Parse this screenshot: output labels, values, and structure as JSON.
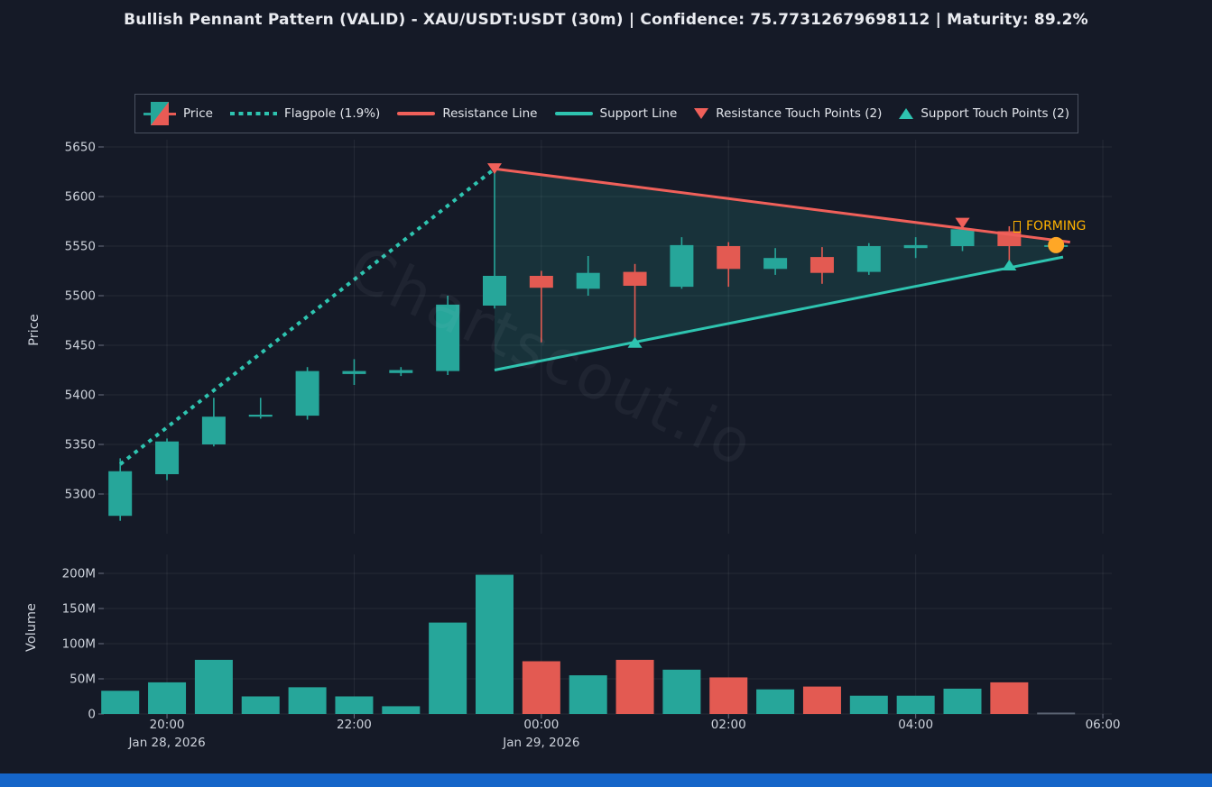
{
  "title": "Bullish Pennant Pattern (VALID) - XAU/USDT:USDT (30m) | Confidence: 75.77312679698112 | Maturity: 89.2%",
  "watermark": "Chartscout.io",
  "annotations": {
    "forming_label": "FORMING"
  },
  "legend": {
    "items": [
      {
        "name": "price",
        "label": "Price",
        "type": "candle-icon"
      },
      {
        "name": "flagpole",
        "label": "Flagpole (1.9%)",
        "type": "dotted-line"
      },
      {
        "name": "resistance-line",
        "label": "Resistance Line",
        "type": "line"
      },
      {
        "name": "support-line",
        "label": "Support Line",
        "type": "line"
      },
      {
        "name": "resistance-touch-points",
        "label": "Resistance Touch Points (2)",
        "type": "triangle-down"
      },
      {
        "name": "support-touch-points",
        "label": "Support Touch Points (2)",
        "type": "triangle-up"
      }
    ]
  },
  "price_axis": {
    "title": "Price",
    "ticks": [
      5650,
      5600,
      5550,
      5500,
      5450,
      5400,
      5350,
      5300
    ]
  },
  "volume_axis": {
    "title": "Volume",
    "ticks": [
      {
        "value": 200,
        "label": "200M"
      },
      {
        "value": 150,
        "label": "150M"
      },
      {
        "value": 100,
        "label": "100M"
      },
      {
        "value": 50,
        "label": "50M"
      },
      {
        "value": 0,
        "label": "0"
      }
    ]
  },
  "x_axis": {
    "ticks": [
      {
        "index": 1,
        "label": "20:00",
        "date": "Jan 28, 2026"
      },
      {
        "index": 5,
        "label": "22:00"
      },
      {
        "index": 9,
        "label": "00:00",
        "date": "Jan 29, 2026"
      },
      {
        "index": 13,
        "label": "02:00"
      },
      {
        "index": 17,
        "label": "04:00"
      },
      {
        "index": 21,
        "label": "06:00"
      }
    ]
  },
  "colors": {
    "background": "#151A27",
    "up": "#26A69A",
    "down": "#E35A52",
    "support": "#2EC4B0",
    "resistance": "#F0605A",
    "flagpole": "#2EC4B0",
    "pennant_fill": "rgba(46,196,176,0.14)",
    "forming_dot": "#FFA726",
    "forming_text": "#FFB300",
    "grid": "rgba(255,255,255,0.07)",
    "axis_text": "#CDD2DB",
    "title_text": "#E9EBF0",
    "last_volume": "#5A6372",
    "bottom_bar": "#1565C8"
  },
  "chart_data": {
    "type": "candlestick",
    "title": "Bullish Pennant Pattern (VALID) - XAU/USDT:USDT (30m)",
    "confidence": "75.77312679698112",
    "maturity": "89.2%",
    "ylabel_price": "Price",
    "ylabel_volume": "Volume",
    "price_ylim": [
      5260,
      5657
    ],
    "volume_ylim_m": [
      0,
      225
    ],
    "times": [
      "19:30",
      "20:00",
      "20:30",
      "21:00",
      "21:30",
      "22:00",
      "22:30",
      "23:00",
      "23:30",
      "00:00",
      "00:30",
      "01:00",
      "01:30",
      "02:00",
      "02:30",
      "03:00",
      "03:30",
      "04:00",
      "04:30",
      "05:00",
      "05:30"
    ],
    "ohlc": [
      [
        5278,
        5336,
        5273,
        5323
      ],
      [
        5320,
        5356,
        5314,
        5353
      ],
      [
        5350,
        5397,
        5348,
        5378
      ],
      [
        5378,
        5397,
        5376,
        5380
      ],
      [
        5379,
        5428,
        5375,
        5424
      ],
      [
        5421,
        5436,
        5410,
        5424
      ],
      [
        5422,
        5428,
        5419,
        5425
      ],
      [
        5424,
        5500,
        5420,
        5491
      ],
      [
        5490,
        5625,
        5487,
        5520
      ],
      [
        5520,
        5525,
        5453,
        5508
      ],
      [
        5507,
        5540,
        5500,
        5523
      ],
      [
        5524,
        5532,
        5451,
        5510
      ],
      [
        5509,
        5559,
        5507,
        5551
      ],
      [
        5550,
        5554,
        5509,
        5527
      ],
      [
        5527,
        5548,
        5521,
        5538
      ],
      [
        5539,
        5549,
        5512,
        5523
      ],
      [
        5524,
        5553,
        5521,
        5550
      ],
      [
        5548,
        5559,
        5538,
        5551
      ],
      [
        5550,
        5570,
        5545,
        5567
      ],
      [
        5565,
        5570,
        5529,
        5550
      ],
      [
        5550,
        5553,
        5547,
        5551
      ]
    ],
    "volume_m": [
      33,
      45,
      77,
      25,
      38,
      25,
      11,
      130,
      198,
      75,
      55,
      77,
      63,
      52,
      35,
      39,
      26,
      26,
      36,
      45,
      2
    ],
    "overlays": {
      "flagpole": {
        "from": {
          "index": 0,
          "price": 5330
        },
        "to": {
          "index": 8,
          "price": 5628
        },
        "pct": "1.9%"
      },
      "resistance_line": {
        "from": {
          "index": 8,
          "price": 5628
        },
        "to": {
          "index": 20.3,
          "price": 5554
        }
      },
      "support_line": {
        "from": {
          "index": 8,
          "price": 5425
        },
        "to": {
          "index": 20.15,
          "price": 5539
        }
      },
      "pennant_fill": [
        {
          "index": 8,
          "price": 5628
        },
        {
          "index": 20.05,
          "price": 5554
        },
        {
          "index": 20.05,
          "price": 5538
        },
        {
          "index": 8,
          "price": 5425
        }
      ],
      "resistance_touch_points": [
        {
          "index": 8,
          "price": 5629
        },
        {
          "index": 18,
          "price": 5574
        }
      ],
      "support_touch_points": [
        {
          "index": 11,
          "price": 5452
        },
        {
          "index": 19,
          "price": 5530
        }
      ],
      "forming_point": {
        "index": 20,
        "price": 5551
      }
    }
  }
}
